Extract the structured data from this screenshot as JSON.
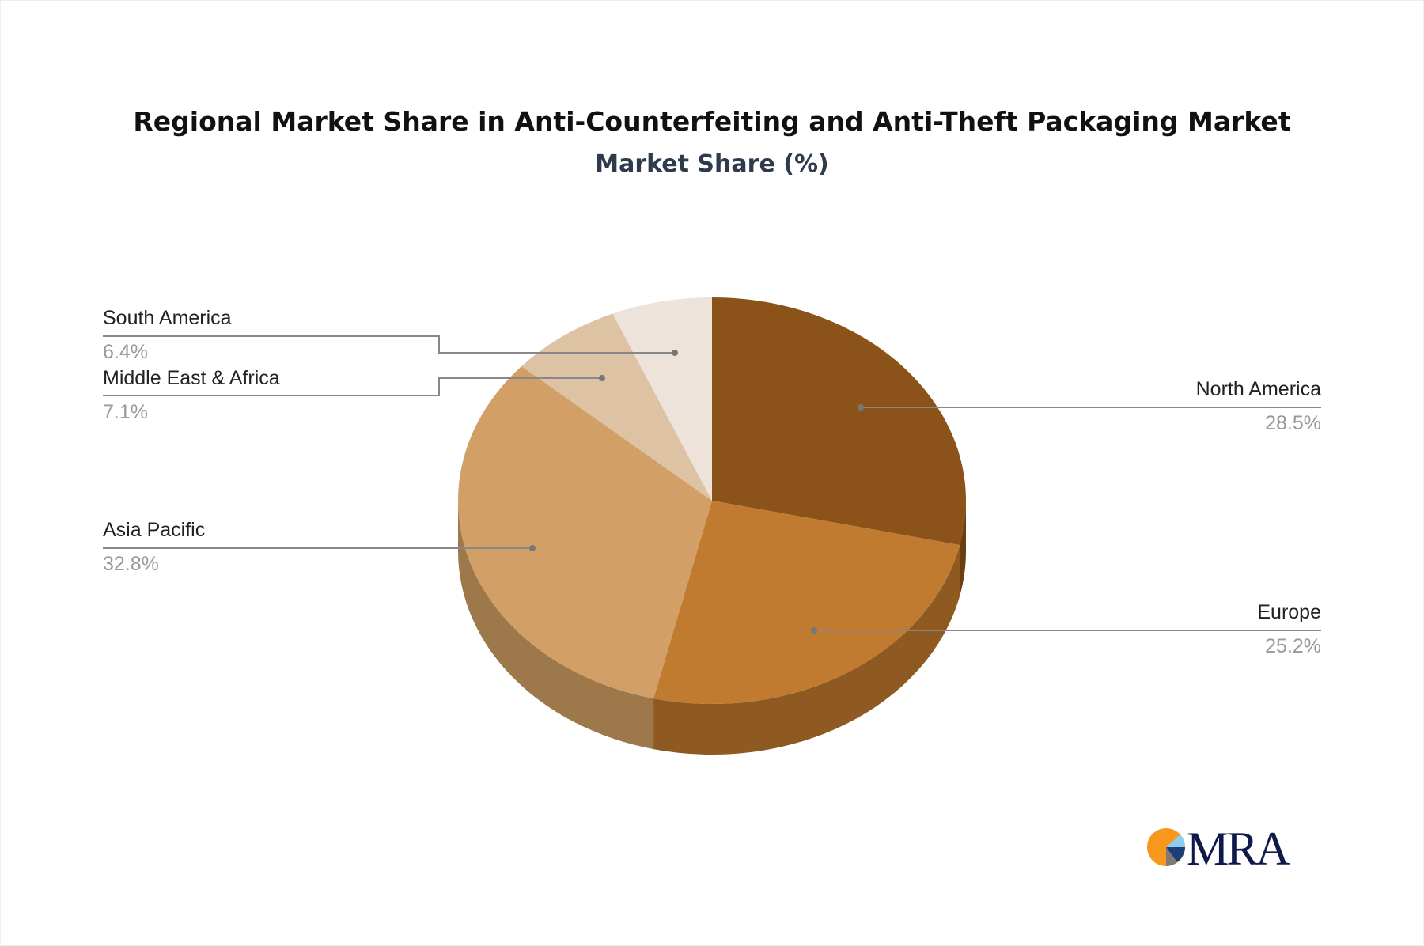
{
  "chart_data": {
    "type": "pie",
    "title": "Regional Market Share in Anti-Counterfeiting and Anti-Theft Packaging Market",
    "subtitle": "Market Share (%)",
    "slices": [
      {
        "label": "North America",
        "value": 28.5,
        "display": "28.5%",
        "color": "#8B5319",
        "side": "#6B3E10"
      },
      {
        "label": "Europe",
        "value": 25.2,
        "display": "25.2%",
        "color": "#C07B30",
        "side": "#8F5A22"
      },
      {
        "label": "Asia Pacific",
        "value": 32.8,
        "display": "32.8%",
        "color": "#D2A066",
        "side": "#9C784A"
      },
      {
        "label": "Middle East & Africa",
        "value": 7.1,
        "display": "7.1%",
        "color": "#DDC2A3",
        "side": "#A89276"
      },
      {
        "label": "South America",
        "value": 6.4,
        "display": "6.4%",
        "color": "#EDE3DA",
        "side": "#B5ACA3"
      }
    ],
    "style": "3d-pie"
  },
  "logo": {
    "text": "MRA",
    "colors": [
      "#F7981D",
      "#0F1A4A",
      "#8DCDEE",
      "#1C3F7A",
      "#7F7A73"
    ]
  }
}
